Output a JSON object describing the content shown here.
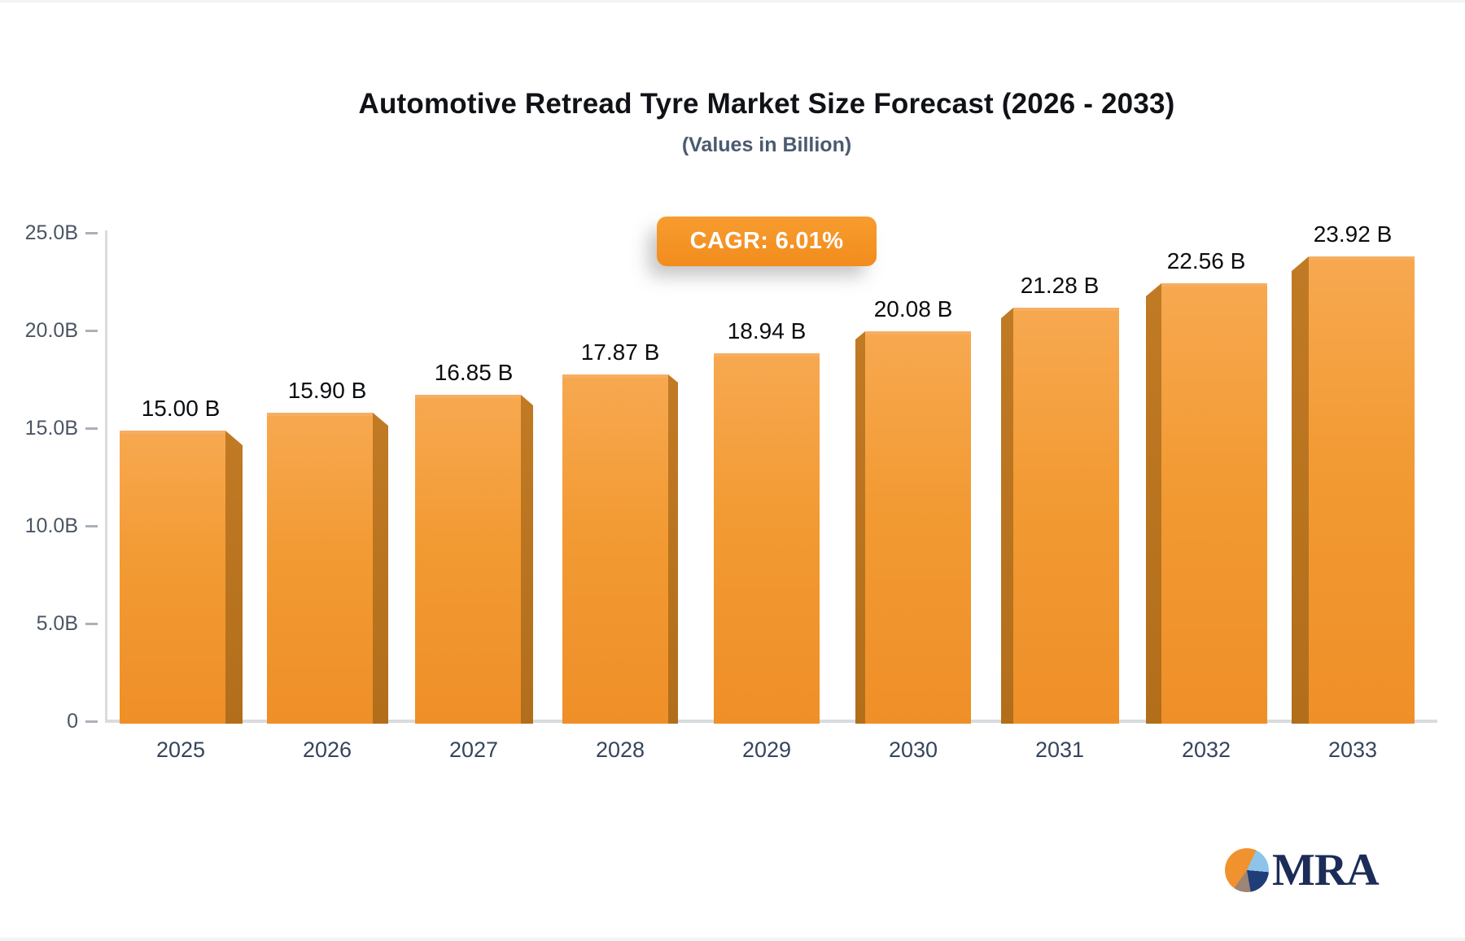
{
  "header": {
    "title": "Automotive Retread Tyre Market Size Forecast (2026 - 2033)",
    "subtitle": "(Values in Billion)"
  },
  "badge": {
    "label": "CAGR: 6.01%"
  },
  "chart_data": {
    "type": "bar",
    "title": "Automotive Retread Tyre Market Size Forecast (2026 - 2033)",
    "subtitle": "(Values in Billion)",
    "categories": [
      "2025",
      "2026",
      "2027",
      "2028",
      "2029",
      "2030",
      "2031",
      "2032",
      "2033"
    ],
    "values": [
      15.0,
      15.9,
      16.85,
      17.87,
      18.94,
      20.08,
      21.28,
      22.56,
      23.92
    ],
    "value_labels": [
      "15.00 B",
      "15.90 B",
      "16.85 B",
      "17.87 B",
      "18.94 B",
      "20.08 B",
      "21.28 B",
      "22.56 B",
      "23.92 B"
    ],
    "cagr_label": "CAGR: 6.01%",
    "y_ticks": [
      {
        "value": 0,
        "label": "0"
      },
      {
        "value": 5,
        "label": "5.0B"
      },
      {
        "value": 10,
        "label": "10.0B"
      },
      {
        "value": 15,
        "label": "15.0B"
      },
      {
        "value": 20,
        "label": "20.0B"
      },
      {
        "value": 25,
        "label": "25.0B"
      }
    ],
    "ylim": [
      0,
      25
    ],
    "xlabel": "",
    "ylabel": "",
    "grid": false,
    "legend": false,
    "bar_face_color": "#f29a33",
    "bar_face_gradient": [
      "#f7a84f",
      "#ef8f28"
    ],
    "bar_top_highlight": "#f6ae63",
    "bar_side_color": "#ba7220",
    "badge_color": "#f5921e",
    "axis_color": "#d9dcdf",
    "tick_label_color": "#4b5563",
    "x_label_color": "#36455c",
    "value_label_color": "#0b0d10"
  },
  "logo": {
    "text": "MRA",
    "text_color": "#1c2c58",
    "pie_colors": [
      "#f0922e",
      "#8ec4ea",
      "#1f3e78",
      "#9b8577"
    ]
  }
}
